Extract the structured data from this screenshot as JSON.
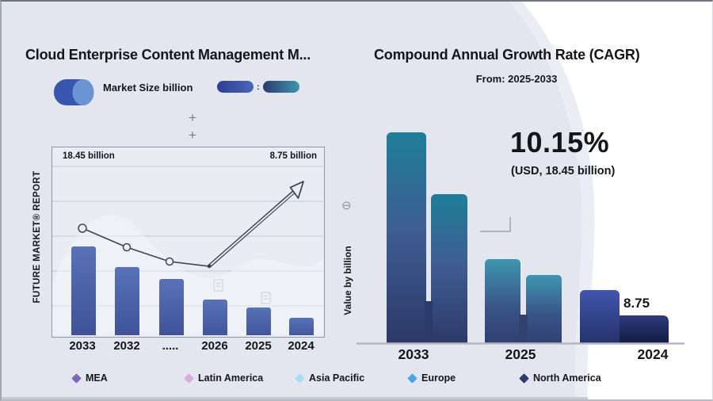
{
  "watermark": "FUTURE MARKET® REPORT",
  "misc": {
    "pill_separator": ":",
    "plus": "+",
    "circle_minus": "⊖"
  },
  "chart_data": [
    {
      "id": "market-size-by-year",
      "type": "bar",
      "title": "Cloud Enterprise Content Management M...",
      "series_label": "Market Size billion",
      "categories": [
        "2033",
        "2032",
        ".....",
        "2026",
        "2025",
        "2024"
      ],
      "value_labels": {
        "high": "18.45 billion",
        "low": "8.75 billion"
      },
      "bar_heights_rel": [
        1,
        0.77,
        0.63,
        0.4,
        0.31,
        0.2
      ],
      "grid": "horizontal",
      "annotation": "declining bars left-to-right with upward trend arrow overlay"
    },
    {
      "id": "cagr-by-year",
      "type": "bar",
      "title": "Compound Annual Growth Rate (CAGR)",
      "subtitle": "From: 2025-2033",
      "cagr_percent": "10.15%",
      "cagr_note": "(USD, 18.45 billion)",
      "categories": [
        "2033",
        "2025",
        "2024"
      ],
      "series": [
        {
          "name": "primary",
          "heights_rel": [
            1,
            0.4,
            0.25
          ]
        },
        {
          "name": "secondary",
          "heights_rel": [
            0.705,
            0.325,
            0.13
          ]
        }
      ],
      "point_label": "8.75",
      "ylabel": "Value by billion"
    }
  ],
  "legend": {
    "items": [
      {
        "label": "MEA",
        "color": "#7e68bd"
      },
      {
        "label": "Latin America",
        "color": "#d9abdf"
      },
      {
        "label": "Asia Pacific",
        "color": "#a9dbf2"
      },
      {
        "label": "Europe",
        "color": "#4ba4ea"
      },
      {
        "label": "North America",
        "color": "#2d3a6e"
      }
    ]
  },
  "colors": {
    "background": "#e3e6ee",
    "panel": "#e9ecf2",
    "left_bar_top": "#5872b8",
    "left_bar_bottom": "#3e5096",
    "teal_top": "#1e7e98",
    "navy_bottom": "#2a3766",
    "blue_2024_top": "#4156ae",
    "dark_2024": "#131c45"
  }
}
